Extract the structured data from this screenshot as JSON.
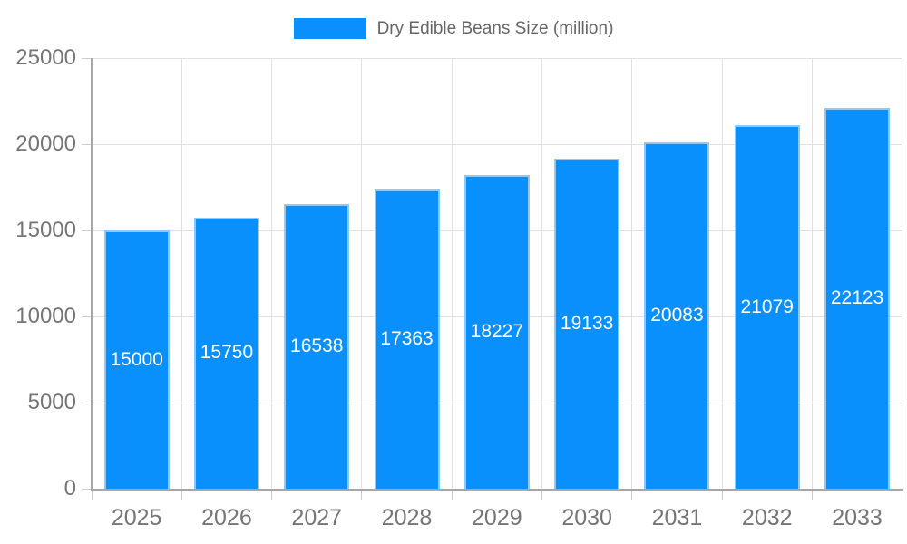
{
  "legend": {
    "position": "top",
    "items": [
      {
        "label": "Dry Edible Beans Size (million)",
        "swatch_color": "#0a90fc"
      }
    ]
  },
  "chart_data": {
    "type": "bar",
    "title": "Dry Edible Beans Size (million)",
    "categories": [
      "2025",
      "2026",
      "2027",
      "2028",
      "2029",
      "2030",
      "2031",
      "2032",
      "2033"
    ],
    "values": [
      15000,
      15750,
      16538,
      17363,
      18227,
      19133,
      20083,
      21079,
      22123
    ],
    "series": [
      {
        "name": "Dry Edible Beans Size (million)",
        "values": [
          15000,
          15750,
          16538,
          17363,
          18227,
          19133,
          20083,
          21079,
          22123
        ]
      }
    ],
    "data_labels": [
      "15000",
      "15750",
      "16538",
      "17363",
      "18227",
      "19133",
      "20083",
      "21079",
      "22123"
    ],
    "xlabel": "",
    "ylabel": "",
    "ylim": [
      0,
      25000
    ],
    "yticks": [
      0,
      5000,
      10000,
      15000,
      20000,
      25000
    ],
    "grid": true,
    "legend_position": "top",
    "colors": {
      "bar_fill": "#0a90fc",
      "bar_border": "#8ec9fd",
      "axis_line": "#a6a6a6",
      "grid_line": "#e0e0e0",
      "tick_line": "#cccccc",
      "tick_text": "#757575",
      "legend_text": "#666666",
      "data_label_text": "#ffffff",
      "background": "#ffffff"
    }
  }
}
